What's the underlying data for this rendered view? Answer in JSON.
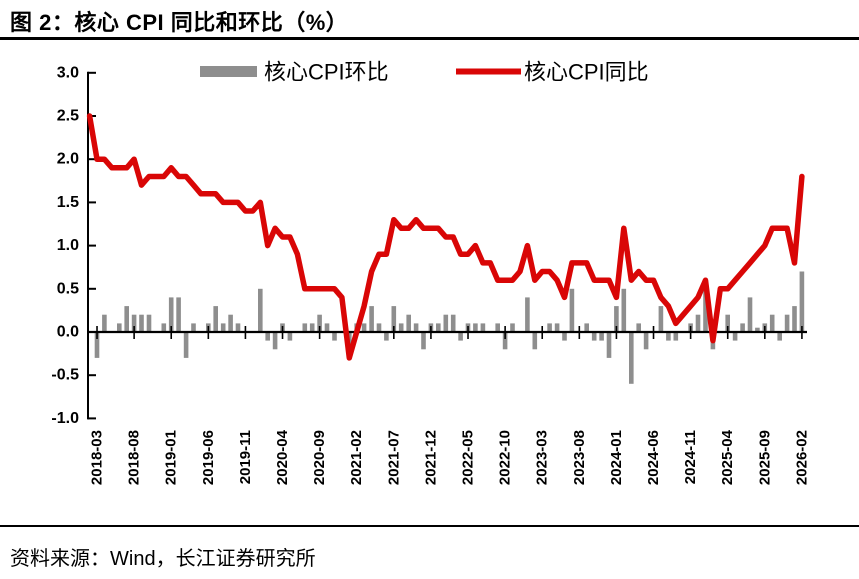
{
  "figure": {
    "title": "图 2：核心 CPI 同比和环比（%）",
    "source": "资料来源：Wind，长江证券研究所"
  },
  "legend": {
    "mom_label": "核心CPI环比",
    "yoy_label": "核心CPI同比",
    "mom_color": "#8e8e8e",
    "yoy_color": "#d90606"
  },
  "chart_data": {
    "type": "bar+line combo, monthly time series",
    "title": "核心 CPI 同比和环比（%）",
    "xlabel": "",
    "ylabel": "",
    "ylim": [
      -1.0,
      3.0
    ],
    "y_tick_step": 0.5,
    "grid": false,
    "legend_position": "top",
    "start_month": "2018-02",
    "end_month": "2026-02",
    "y_ticks": [
      "3.0",
      "2.5",
      "2.0",
      "1.5",
      "1.0",
      "0.5",
      "0.0",
      "-0.5",
      "-1.0"
    ],
    "x_tick_labels": [
      "2018-03",
      "2018-08",
      "2019-01",
      "2019-06",
      "2019-11",
      "2020-04",
      "2020-09",
      "2021-02",
      "2021-07",
      "2021-12",
      "2022-05",
      "2022-10",
      "2023-03",
      "2023-08",
      "2024-01",
      "2024-06",
      "2024-11",
      "2025-04",
      "2025-09",
      "2026-02"
    ],
    "series": [
      {
        "name": "核心CPI环比",
        "type": "bar",
        "color": "#8e8e8e",
        "values": [
          null,
          -0.3,
          0.2,
          0.0,
          0.1,
          0.3,
          0.2,
          0.2,
          0.2,
          0.0,
          0.1,
          0.4,
          0.4,
          -0.3,
          0.1,
          0.0,
          0.1,
          0.3,
          0.1,
          0.2,
          0.1,
          0.0,
          0.0,
          0.5,
          -0.1,
          -0.2,
          0.1,
          -0.1,
          0.0,
          0.1,
          0.1,
          0.2,
          0.1,
          -0.1,
          0.0,
          -0.2,
          0.1,
          0.1,
          0.3,
          0.1,
          -0.1,
          0.3,
          0.1,
          0.2,
          0.1,
          -0.2,
          0.1,
          0.1,
          0.2,
          0.2,
          -0.1,
          0.1,
          0.1,
          0.1,
          0.0,
          0.1,
          -0.2,
          0.1,
          0.0,
          0.4,
          -0.2,
          0.0,
          0.1,
          0.1,
          -0.1,
          0.5,
          0.0,
          0.1,
          -0.1,
          -0.1,
          -0.3,
          0.3,
          0.5,
          -0.6,
          0.1,
          -0.2,
          0.0,
          0.3,
          -0.1,
          -0.1,
          0.0,
          0.1,
          0.2,
          0.5,
          -0.2,
          0.0,
          0.2,
          -0.1,
          0.1,
          0.4,
          0.05,
          0.1,
          0.2,
          -0.1,
          0.2,
          0.3,
          0.7
        ]
      },
      {
        "name": "核心CPI同比",
        "type": "line",
        "color": "#d90606",
        "values": [
          2.5,
          2.0,
          2.0,
          1.9,
          1.9,
          1.9,
          2.0,
          1.7,
          1.8,
          1.8,
          1.8,
          1.9,
          1.8,
          1.8,
          1.7,
          1.6,
          1.6,
          1.6,
          1.5,
          1.5,
          1.5,
          1.4,
          1.4,
          1.5,
          1.0,
          1.2,
          1.1,
          1.1,
          0.9,
          0.5,
          0.5,
          0.5,
          0.5,
          0.5,
          0.4,
          -0.3,
          0.0,
          0.3,
          0.7,
          0.9,
          0.9,
          1.3,
          1.2,
          1.2,
          1.3,
          1.2,
          1.2,
          1.2,
          1.1,
          1.1,
          0.9,
          0.9,
          1.0,
          0.8,
          0.8,
          0.6,
          0.6,
          0.6,
          0.7,
          1.0,
          0.6,
          0.7,
          0.7,
          0.6,
          0.4,
          0.8,
          0.8,
          0.8,
          0.6,
          0.6,
          0.6,
          0.4,
          1.2,
          0.6,
          0.7,
          0.6,
          0.6,
          0.4,
          0.3,
          0.1,
          0.2,
          0.3,
          0.4,
          0.6,
          -0.1,
          0.5,
          0.5,
          0.6,
          0.7,
          0.8,
          0.9,
          1.0,
          1.2,
          1.2,
          1.2,
          0.8,
          1.8
        ]
      }
    ]
  }
}
